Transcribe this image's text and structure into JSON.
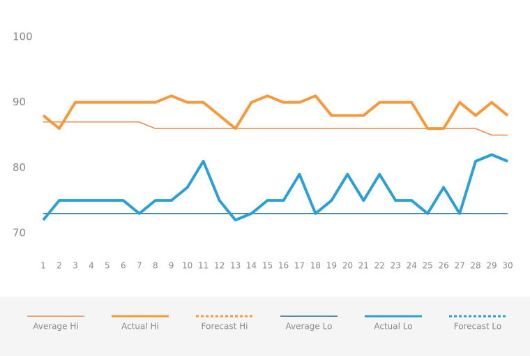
{
  "chart_data": {
    "type": "line",
    "x": [
      1,
      2,
      3,
      4,
      5,
      6,
      7,
      8,
      9,
      10,
      11,
      12,
      13,
      14,
      15,
      16,
      17,
      18,
      19,
      20,
      21,
      22,
      23,
      24,
      25,
      26,
      27,
      28,
      29,
      30
    ],
    "xlim": [
      1,
      30
    ],
    "ylim": [
      70,
      100
    ],
    "yticks": [
      70,
      80,
      90,
      100
    ],
    "series": [
      {
        "name": "Average Hi",
        "color": "#ec8748",
        "width": 1.5,
        "dash": false,
        "values": [
          87,
          87,
          87,
          87,
          87,
          87,
          87,
          86,
          86,
          86,
          86,
          86,
          86,
          86,
          86,
          86,
          86,
          86,
          86,
          86,
          86,
          86,
          86,
          86,
          86,
          86,
          86,
          86,
          85,
          85
        ]
      },
      {
        "name": "Actual Hi",
        "color": "#f7993b",
        "width": 4,
        "dash": false,
        "values": [
          88,
          86,
          90,
          90,
          90,
          90,
          90,
          90,
          91,
          90,
          90,
          88,
          86,
          90,
          91,
          90,
          90,
          91,
          88,
          88,
          88,
          90,
          90,
          90,
          86,
          86,
          90,
          88,
          90,
          88
        ]
      },
      {
        "name": "Forecast Hi",
        "color": "#f7993b",
        "width": 3,
        "dash": true,
        "values": [
          null,
          null,
          null,
          null,
          null,
          null,
          null,
          null,
          null,
          null,
          null,
          null,
          null,
          null,
          null,
          null,
          null,
          null,
          null,
          null,
          null,
          null,
          null,
          null,
          null,
          null,
          null,
          null,
          null,
          null
        ]
      },
      {
        "name": "Average Lo",
        "color": "#1e6a86",
        "width": 1.5,
        "dash": false,
        "values": [
          73,
          73,
          73,
          73,
          73,
          73,
          73,
          73,
          73,
          73,
          73,
          73,
          73,
          73,
          73,
          73,
          73,
          73,
          73,
          73,
          73,
          73,
          73,
          73,
          73,
          73,
          73,
          73,
          73,
          73
        ]
      },
      {
        "name": "Actual Lo",
        "color": "#2b9fd6",
        "width": 4,
        "dash": false,
        "values": [
          72,
          75,
          75,
          75,
          75,
          75,
          73,
          75,
          75,
          77,
          81,
          75,
          72,
          73,
          75,
          75,
          79,
          73,
          75,
          79,
          75,
          79,
          75,
          75,
          73,
          77,
          73,
          81,
          82,
          81
        ]
      },
      {
        "name": "Forecast Lo",
        "color": "#2b9fd6",
        "width": 3,
        "dash": true,
        "values": [
          null,
          null,
          null,
          null,
          null,
          null,
          null,
          null,
          null,
          null,
          null,
          null,
          null,
          null,
          null,
          null,
          null,
          null,
          null,
          null,
          null,
          null,
          null,
          null,
          null,
          null,
          null,
          null,
          null,
          null
        ]
      }
    ]
  }
}
